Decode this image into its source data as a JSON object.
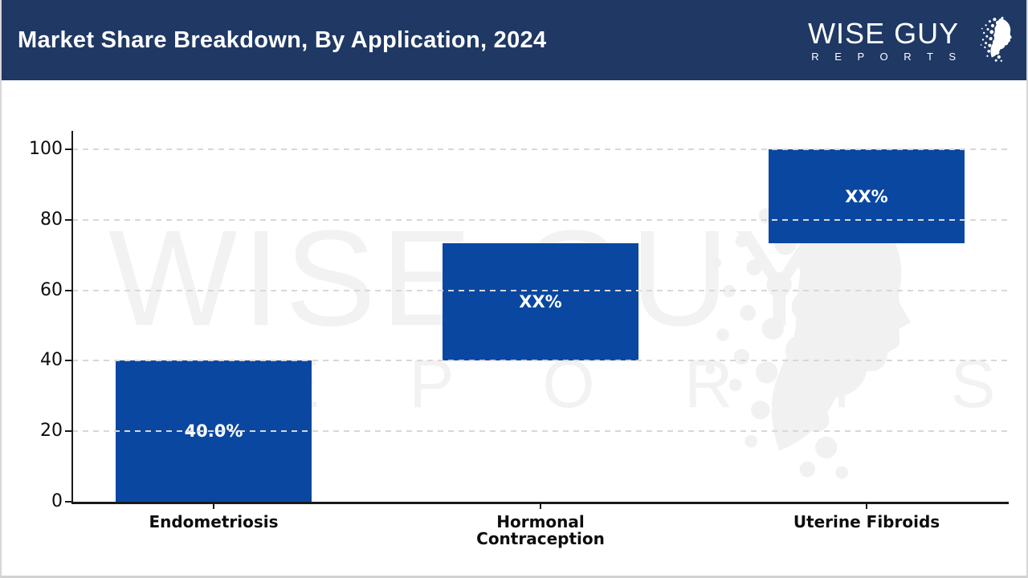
{
  "header": {
    "title": "Market Share Breakdown, By Application, 2024",
    "logo": {
      "line1": "WISE GUY",
      "line2": "R E P O R T S"
    }
  },
  "watermark": {
    "line1": "WISE GUY",
    "line2": "R E P O R T S"
  },
  "colors": {
    "header_bg": "#1f3864",
    "bar_fill": "#0a47a1",
    "bar_label_text": "#ffffff",
    "grid_line": "#d8d8d8",
    "axis_line": "#1a1a1a",
    "tick_text": "#0d0d0d",
    "watermark_gray": "#f2f2f3",
    "title_text": "#ffffff"
  },
  "chart_data": {
    "type": "bar",
    "subtype": "waterfall",
    "title": "Market Share Breakdown, By Application, 2024",
    "categories": [
      "Endometriosis",
      "Hormonal\nContraception",
      "Uterine Fibroids"
    ],
    "series": [
      {
        "name": "Market Share",
        "segments": [
          {
            "category": "Endometriosis",
            "start": 0,
            "end": 40,
            "value": 40.0,
            "label": "40.0%"
          },
          {
            "category": "Hormonal Contraception",
            "start": 40,
            "end": 73.3,
            "value": 33.3,
            "label": "XX%"
          },
          {
            "category": "Uterine Fibroids",
            "start": 73.3,
            "end": 100,
            "value": 26.7,
            "label": "XX%"
          }
        ]
      }
    ],
    "value_labels_displayed": [
      "40.0%",
      "XX%",
      "XX%"
    ],
    "xlabel": "",
    "ylabel": "",
    "ylim": [
      0,
      105
    ],
    "yticks": [
      0,
      20,
      40,
      60,
      80,
      100
    ],
    "grid": "horizontal dashed",
    "legend": "none"
  }
}
